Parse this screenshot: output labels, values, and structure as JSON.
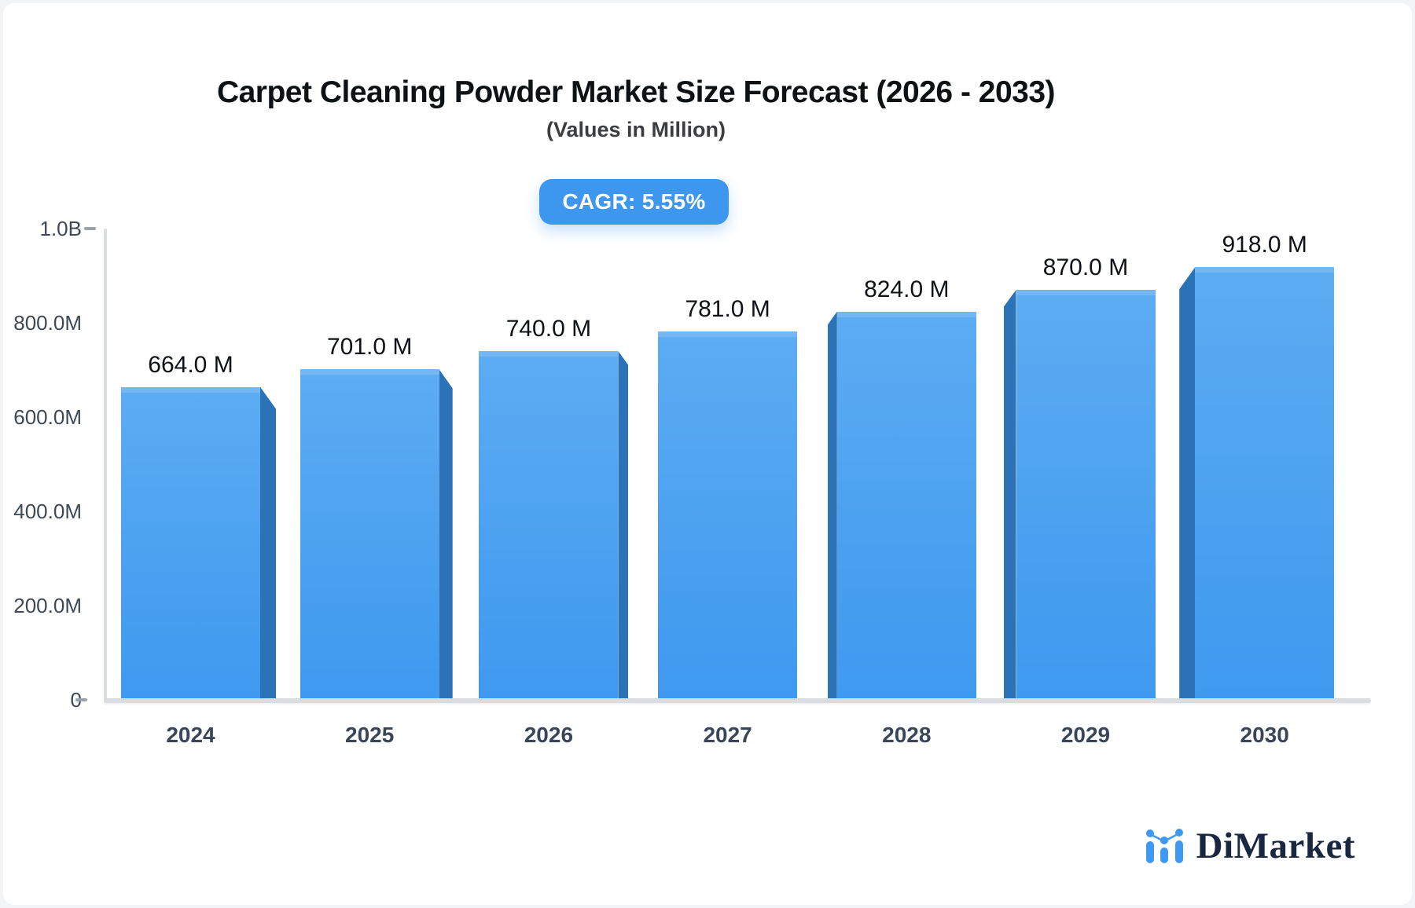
{
  "chart_data": {
    "type": "bar",
    "title": "Carpet Cleaning Powder Market Size Forecast (2026 - 2033)",
    "subtitle": "(Values in Million)",
    "annotation": "CAGR: 5.55%",
    "categories": [
      "2024",
      "2025",
      "2026",
      "2027",
      "2028",
      "2029",
      "2030"
    ],
    "values": [
      664,
      701,
      740,
      781,
      824,
      870,
      918
    ],
    "value_labels": [
      "664.0 M",
      "701.0 M",
      "740.0 M",
      "781.0 M",
      "824.0 M",
      "870.0 M",
      "918.0 M"
    ],
    "unit": "Million",
    "y_axis": {
      "range": [
        0,
        1000
      ],
      "ticks": [
        {
          "label": "1.0B",
          "value": 1000
        },
        {
          "label": "800.0M",
          "value": 800
        },
        {
          "label": "600.0M",
          "value": 600
        },
        {
          "label": "400.0M",
          "value": 400
        },
        {
          "label": "200.0M",
          "value": 200
        },
        {
          "label": "0",
          "value": 0
        }
      ]
    },
    "grid": false,
    "legend_position": "none",
    "colors": {
      "accent": "#3E97EF",
      "bar_face_top": "#5CACF2",
      "bar_face_bottom": "#3F99EF",
      "bar_cap": "#74B7F3",
      "bar_side": "#2C72B7",
      "axis_line": "#D9DCE0"
    }
  },
  "logo": {
    "text": "DiMarket",
    "icon": "bar-chart-logo-icon",
    "icon_color": "#3E9AF0",
    "text_color": "#1A2740"
  }
}
